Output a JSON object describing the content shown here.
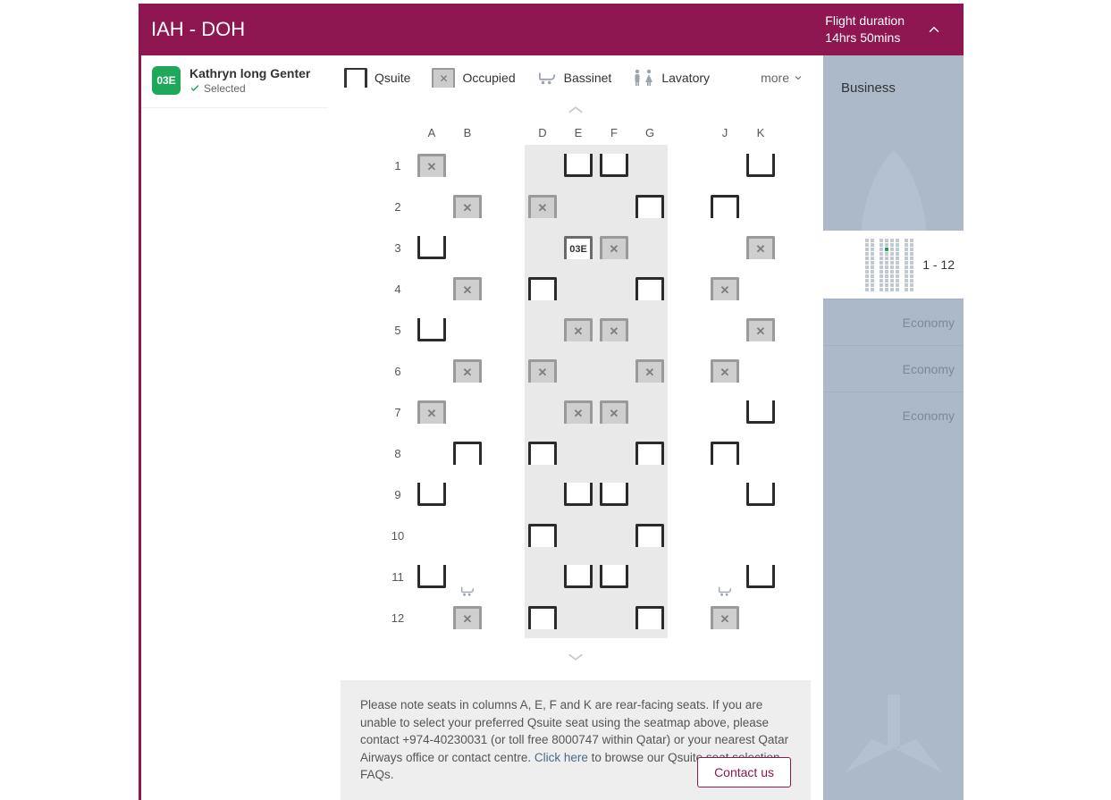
{
  "header": {
    "route": "IAH - DOH",
    "duration_label": "Flight duration",
    "duration_value": "14hrs 50mins"
  },
  "colors": {
    "brand": "#8e1651",
    "selected_green": "#1ea85b",
    "right_panel_bg": "#abb9c9",
    "note_bg": "#eeeeee"
  },
  "passenger": {
    "seat_badge": "03E",
    "name": "Kathryn long Genter",
    "status": "Selected"
  },
  "legend": {
    "qsuite": "Qsuite",
    "occupied": "Occupied",
    "bassinet": "Bassinet",
    "lavatory": "Lavatory",
    "more": "more"
  },
  "columns": [
    "A",
    "B",
    "D",
    "E",
    "F",
    "G",
    "J",
    "K"
  ],
  "rows": [
    "1",
    "2",
    "3",
    "4",
    "5",
    "6",
    "7",
    "8",
    "9",
    "10",
    "11",
    "12"
  ],
  "selected_seat": "03E",
  "seats": {
    "1": {
      "A": "occ",
      "B": null,
      "D": null,
      "E": "avail_rear",
      "F": "avail_rear",
      "G": null,
      "J": null,
      "K": "avail_rear"
    },
    "2": {
      "A": null,
      "B": "occ",
      "D": "occ",
      "E": null,
      "F": null,
      "G": "avail",
      "J": "avail",
      "K": null
    },
    "3": {
      "A": "avail_rear",
      "B": null,
      "D": null,
      "E": "selected",
      "F": "occ",
      "G": null,
      "J": null,
      "K": "occ"
    },
    "4": {
      "A": null,
      "B": "occ",
      "D": "avail",
      "E": null,
      "F": null,
      "G": "avail",
      "J": "occ",
      "K": null
    },
    "5": {
      "A": "avail_rear",
      "B": null,
      "D": null,
      "E": "occ",
      "F": "occ",
      "G": null,
      "J": null,
      "K": "occ"
    },
    "6": {
      "A": null,
      "B": "occ",
      "D": "occ",
      "E": null,
      "F": null,
      "G": "occ",
      "J": "occ",
      "K": null
    },
    "7": {
      "A": "occ",
      "B": null,
      "D": null,
      "E": "occ",
      "F": "occ",
      "G": null,
      "J": null,
      "K": "avail_rear"
    },
    "8": {
      "A": null,
      "B": "avail",
      "D": "avail",
      "E": null,
      "F": null,
      "G": "avail",
      "J": "avail",
      "K": null
    },
    "9": {
      "A": "avail_rear",
      "B": null,
      "D": null,
      "E": "avail_rear",
      "F": "avail_rear",
      "G": null,
      "J": null,
      "K": "avail_rear"
    },
    "10": {
      "A": null,
      "B": null,
      "D": "avail",
      "E": null,
      "F": null,
      "G": "avail",
      "J": null,
      "K": null
    },
    "11": {
      "A": "avail_rear",
      "B": null,
      "D": null,
      "E": "avail_rear",
      "F": "avail_rear",
      "G": null,
      "J": null,
      "K": "avail_rear"
    },
    "12": {
      "A": null,
      "B": "occ_bassinet",
      "D": "avail",
      "E": null,
      "F": null,
      "G": "avail",
      "J": "occ_bassinet",
      "K": null
    }
  },
  "note": {
    "text_1": "Please note seats in columns A, E, F and K are rear-facing seats. If you are unable to select your preferred Qsuite seat using the seatmap above, please contact +974-40230031 (or toll free 8000747 within Qatar) or your nearest Qatar Airways office or contact centre. ",
    "link": "Click here",
    "text_2": " to browse our Qsuite seat selection FAQs.",
    "contact_btn": "Contact us"
  },
  "right_panel": {
    "business_label": "Business",
    "biz_range": "1 - 12",
    "economy_label_1": "Economy",
    "economy_label_2": "Economy",
    "economy_label_3": "Economy"
  }
}
